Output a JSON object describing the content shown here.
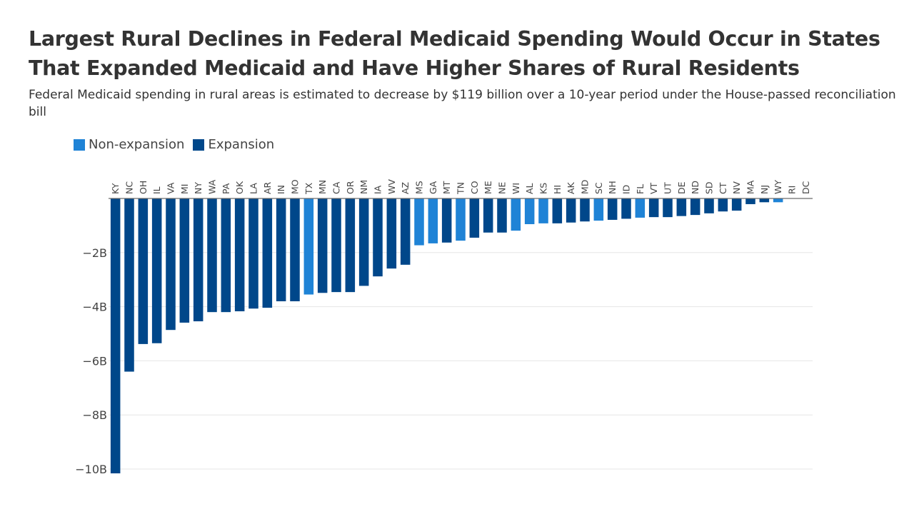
{
  "header": {
    "title": "Largest Rural Declines in Federal Medicaid Spending Would Occur in States That Expanded Medicaid and Have Higher Shares of Rural Residents",
    "subtitle": "Federal Medicaid spending in rural areas is estimated to decrease by $119 billion over a 10-year period under the House-passed reconciliation bill"
  },
  "legend": [
    {
      "label": "Non-expansion",
      "color": "#1f83d6"
    },
    {
      "label": "Expansion",
      "color": "#00478a"
    }
  ],
  "chart_data": {
    "type": "bar",
    "title": "Largest Rural Declines in Federal Medicaid Spending Would Occur in States That Expanded Medicaid and Have Higher Shares of Rural Residents",
    "xlabel": "",
    "ylabel": "",
    "ylim": [
      -10,
      0
    ],
    "yticks": [
      0,
      -2,
      -4,
      -6,
      -8,
      -10
    ],
    "ytick_labels": [
      "",
      "−2B",
      "−4B",
      "−6B",
      "−8B",
      "−10B"
    ],
    "grid": true,
    "legend_position": "top-left",
    "units": "billions USD",
    "categories": [
      "KY",
      "NC",
      "OH",
      "IL",
      "VA",
      "MI",
      "NY",
      "WA",
      "PA",
      "OK",
      "LA",
      "AR",
      "IN",
      "MO",
      "TX",
      "MN",
      "CA",
      "OR",
      "NM",
      "IA",
      "WV",
      "AZ",
      "MS",
      "GA",
      "MT",
      "TN",
      "CO",
      "ME",
      "NE",
      "WI",
      "AL",
      "KS",
      "HI",
      "AK",
      "MD",
      "SC",
      "NH",
      "ID",
      "FL",
      "VT",
      "UT",
      "DE",
      "ND",
      "SD",
      "CT",
      "NV",
      "MA",
      "NJ",
      "WY",
      "RI",
      "DC"
    ],
    "values": [
      -10.16,
      -6.4,
      -5.38,
      -5.35,
      -4.86,
      -4.59,
      -4.54,
      -4.2,
      -4.2,
      -4.17,
      -4.07,
      -4.04,
      -3.8,
      -3.8,
      -3.55,
      -3.49,
      -3.46,
      -3.46,
      -3.23,
      -2.88,
      -2.59,
      -2.45,
      -1.73,
      -1.66,
      -1.63,
      -1.56,
      -1.45,
      -1.26,
      -1.26,
      -1.19,
      -0.95,
      -0.92,
      -0.92,
      -0.89,
      -0.85,
      -0.82,
      -0.79,
      -0.75,
      -0.71,
      -0.69,
      -0.69,
      -0.65,
      -0.61,
      -0.55,
      -0.48,
      -0.45,
      -0.21,
      -0.14,
      -0.14,
      0,
      0
    ],
    "expansion_status": [
      "Expansion",
      "Expansion",
      "Expansion",
      "Expansion",
      "Expansion",
      "Expansion",
      "Expansion",
      "Expansion",
      "Expansion",
      "Expansion",
      "Expansion",
      "Expansion",
      "Expansion",
      "Expansion",
      "Non-expansion",
      "Expansion",
      "Expansion",
      "Expansion",
      "Expansion",
      "Expansion",
      "Expansion",
      "Expansion",
      "Non-expansion",
      "Non-expansion",
      "Expansion",
      "Non-expansion",
      "Expansion",
      "Expansion",
      "Expansion",
      "Non-expansion",
      "Non-expansion",
      "Non-expansion",
      "Expansion",
      "Expansion",
      "Expansion",
      "Non-expansion",
      "Expansion",
      "Expansion",
      "Non-expansion",
      "Expansion",
      "Expansion",
      "Expansion",
      "Expansion",
      "Expansion",
      "Expansion",
      "Expansion",
      "Expansion",
      "Expansion",
      "Non-expansion",
      "Expansion",
      "Expansion"
    ],
    "series": [
      {
        "name": "Non-expansion",
        "color": "#1f83d6"
      },
      {
        "name": "Expansion",
        "color": "#00478a"
      }
    ]
  }
}
